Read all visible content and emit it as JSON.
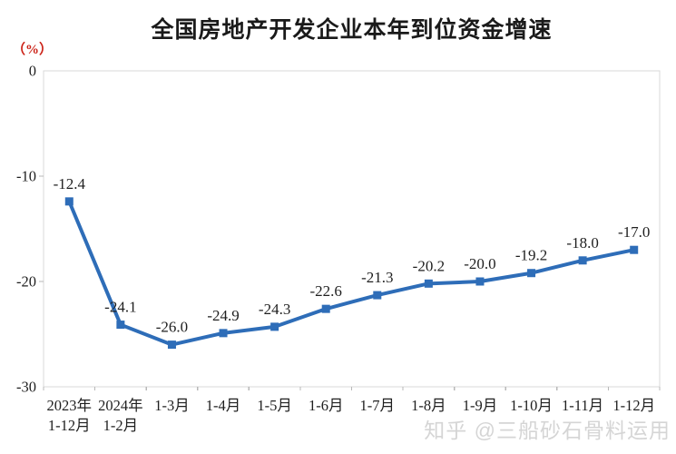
{
  "page": {
    "title": "全国房地产开发企业本年到位资金增速",
    "watermark": "知乎 @三船砂石骨料运用"
  },
  "chart_data": {
    "type": "line",
    "title": "全国房地产开发企业本年到位资金增速",
    "ylabel": "（%）",
    "xlabel": "",
    "categories": [
      [
        "2023年",
        "1-12月"
      ],
      [
        "2024年",
        "1-2月"
      ],
      [
        "1-3月"
      ],
      [
        "1-4月"
      ],
      [
        "1-5月"
      ],
      [
        "1-6月"
      ],
      [
        "1-7月"
      ],
      [
        "1-8月"
      ],
      [
        "1-9月"
      ],
      [
        "1-10月"
      ],
      [
        "1-11月"
      ],
      [
        "1-12月"
      ]
    ],
    "series": [
      {
        "name": "本年到位资金增速",
        "values": [
          -12.4,
          -24.1,
          -26.0,
          -24.9,
          -24.3,
          -22.6,
          -21.3,
          -20.2,
          -20.0,
          -19.2,
          -18.0,
          -17.0
        ],
        "data_labels": [
          "-12.4",
          "-24.1",
          "-26.0",
          "-24.9",
          "-24.3",
          "-22.6",
          "-21.3",
          "-20.2",
          "-20.0",
          "-19.2",
          "-18.0",
          "-17.0"
        ]
      }
    ],
    "yticks": [
      0,
      -10,
      -20,
      -30
    ],
    "ytick_labels": [
      "0",
      "-10",
      "-20",
      "-30"
    ],
    "ylim": [
      -30,
      0
    ],
    "grid": false,
    "legend_position": "none",
    "marker": "square",
    "colors": {
      "line": "#2e6db8",
      "marker": "#2e6db8",
      "data_label_text": "#1f1f1f",
      "axis_border": "#d9d9d9",
      "tick": "#b8b8b8",
      "tick_label_text": "#262626",
      "unit_label": "#cc2318",
      "plot_background": "#ffffff",
      "watermark_text": "#d5d5d5"
    }
  }
}
